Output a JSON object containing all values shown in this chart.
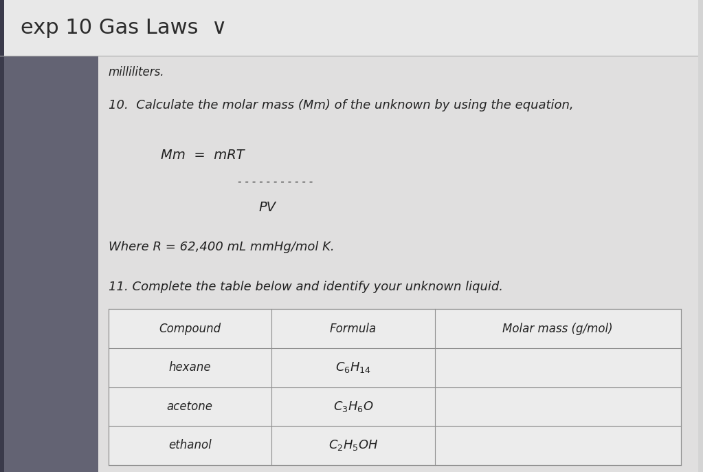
{
  "title": "exp 10 Gas Laws  ∨",
  "title_color": "#2c2c2c",
  "bg_color": "#d4d4d4",
  "left_col_color": "#636373",
  "thin_bar_color": "#3a3a4a",
  "top_bar_color": "#e8e8e8",
  "content_bg": "#e0dfdf",
  "milliliters_text": "milliliters.",
  "item10_text": "10.  Calculate the molar mass (Mm) of the unknown by using the equation,",
  "mm_numerator": "Mm  =  mRT",
  "dashes": "- - - - - - - - - - -",
  "pv_text": "PV",
  "where_r_text": "Where R = 62,400 mL mmHg/mol K.",
  "item11_text": "11. Complete the table below and identify your unknown liquid.",
  "table_headers": [
    "Compound",
    "Formula",
    "Molar mass (g/mol)"
  ],
  "table_compounds": [
    "hexane",
    "acetone",
    "ethanol"
  ],
  "table_formulas": [
    "$C_6H_{14}$",
    "$C_3H_6O$",
    "$C_2H_5OH$"
  ],
  "font_size_title": 22,
  "font_size_body": 13,
  "font_size_table": 12
}
